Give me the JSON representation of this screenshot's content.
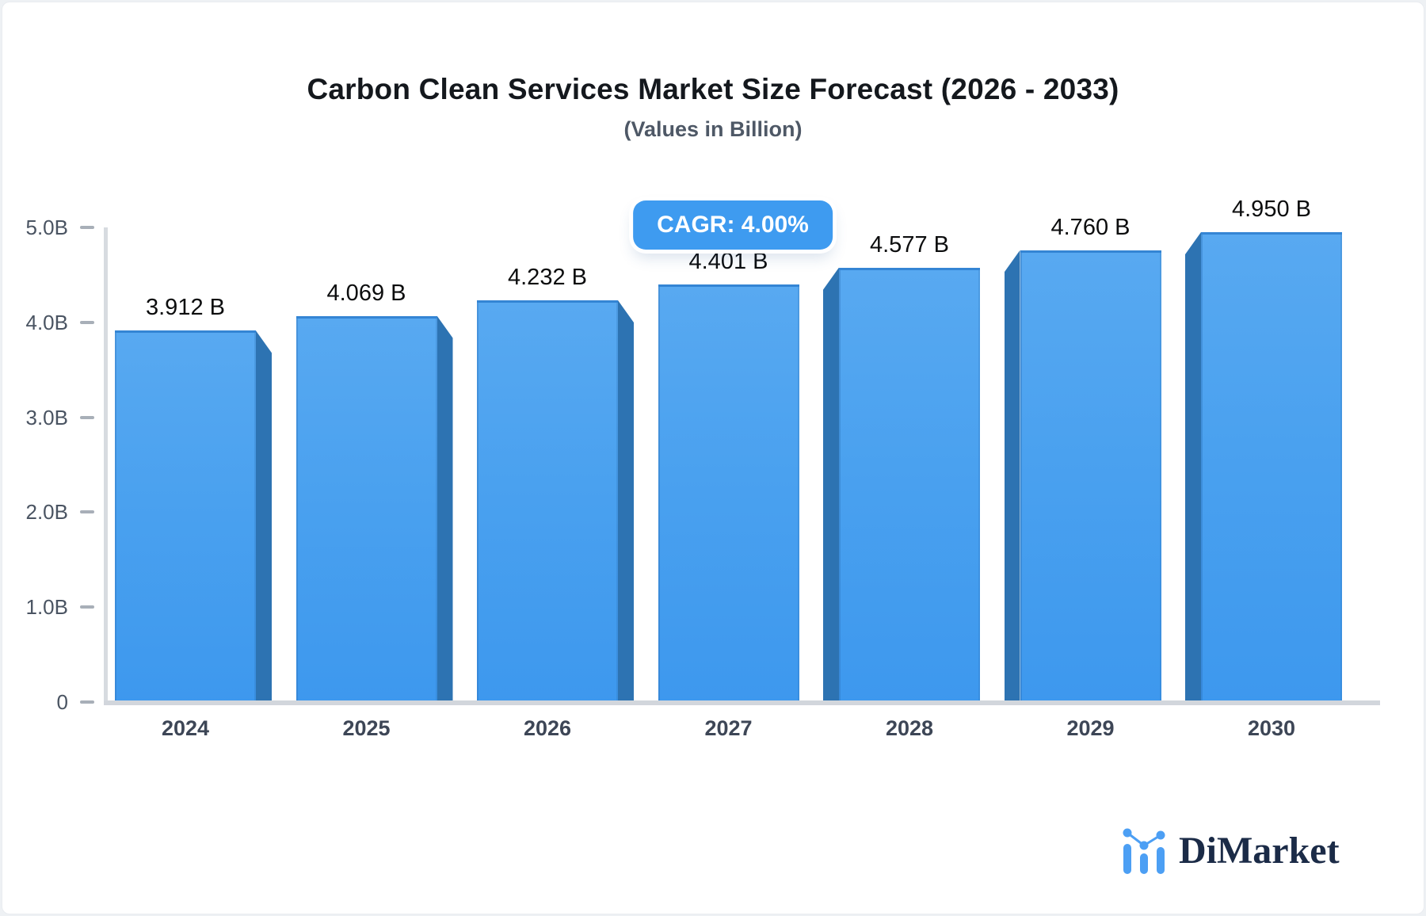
{
  "header": {
    "title": "Carbon Clean Services Market Size Forecast (2026 - 2033)",
    "subtitle": "(Values in Billion)"
  },
  "badge": {
    "label": "CAGR: 4.00%",
    "color": "#3e9bf0"
  },
  "chart_data": {
    "type": "bar",
    "title": "Carbon Clean Services Market Size Forecast (2026 - 2033)",
    "subtitle": "(Values in Billion)",
    "annotation": "CAGR: 4.00%",
    "categories": [
      "2024",
      "2025",
      "2026",
      "2027",
      "2028",
      "2029",
      "2030"
    ],
    "values": [
      3.912,
      4.069,
      4.232,
      4.401,
      4.577,
      4.76,
      4.95
    ],
    "value_labels": [
      "3.912 B",
      "4.069 B",
      "4.232 B",
      "4.401 B",
      "4.577 B",
      "4.760 B",
      "4.950 B"
    ],
    "unit": "Billion",
    "ylim": [
      0,
      5
    ],
    "y_ticks": [
      {
        "value": 5,
        "label": "5.0B"
      },
      {
        "value": 4,
        "label": "4.0B"
      },
      {
        "value": 3,
        "label": "3.0B"
      },
      {
        "value": 2,
        "label": "2.0B"
      },
      {
        "value": 1,
        "label": "1.0B"
      },
      {
        "value": 0,
        "label": "0"
      }
    ],
    "grid": false,
    "legend": false,
    "style_3d": true,
    "colors": {
      "bar_face_top": "#58a9f1",
      "bar_face_bottom": "#3d98ee",
      "bar_side": "#2d73b2",
      "badge": "#3e9bf0",
      "axis_line": "#d6dadf",
      "axis_text": "#4a5462",
      "value_text": "#0c0d0e"
    }
  },
  "branding": {
    "logo_text": "DiMarket",
    "logo_icon": "bar-chart-sparkline-icon",
    "logo_icon_color": "#4c9ff4",
    "logo_text_color": "#1b2b47"
  }
}
